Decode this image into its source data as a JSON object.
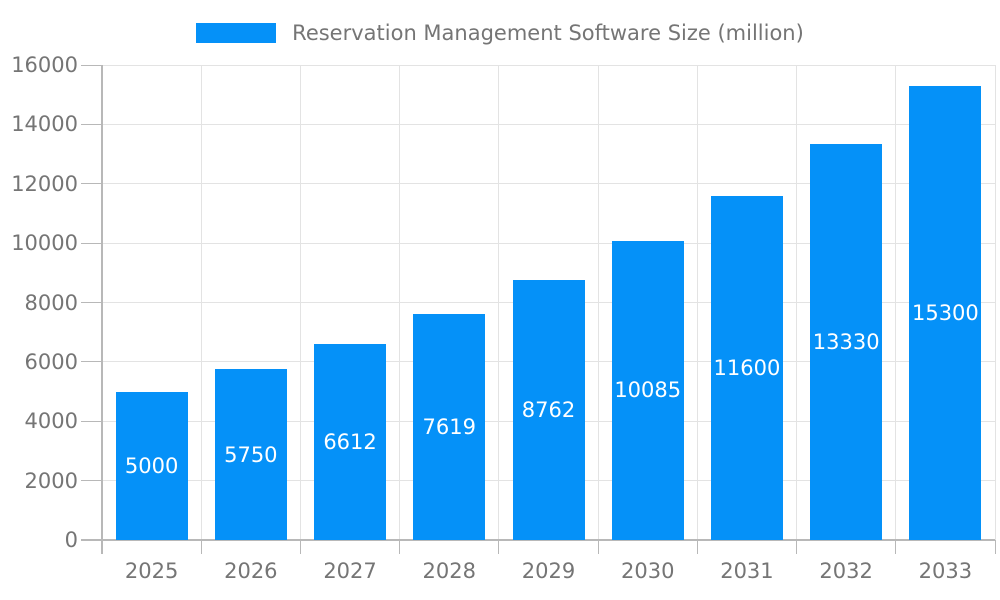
{
  "chart_data": {
    "type": "bar",
    "series_name": "Reservation Management Software Size (million)",
    "categories": [
      "2025",
      "2026",
      "2027",
      "2028",
      "2029",
      "2030",
      "2031",
      "2032",
      "2033"
    ],
    "values": [
      5000,
      5750,
      6612,
      7619,
      8762,
      10085,
      11600,
      13330,
      15300
    ],
    "value_labels": [
      "5000",
      "5750",
      "6612",
      "7619",
      "8762",
      "10085",
      "11600",
      "13330",
      "15300"
    ],
    "xlabel": "",
    "ylabel": "",
    "ylim": [
      0,
      16000
    ],
    "ytick_step": 2000,
    "yticks": [
      0,
      2000,
      4000,
      6000,
      8000,
      10000,
      12000,
      14000,
      16000
    ],
    "grid": true,
    "legend_position": "top",
    "bar_color": "#0591f8",
    "value_label_color": "#ffffff",
    "axis_text_color": "#757575",
    "grid_color": "#e3e3e3",
    "axis_line_color": "#b8b8b8",
    "background": "#ffffff"
  }
}
